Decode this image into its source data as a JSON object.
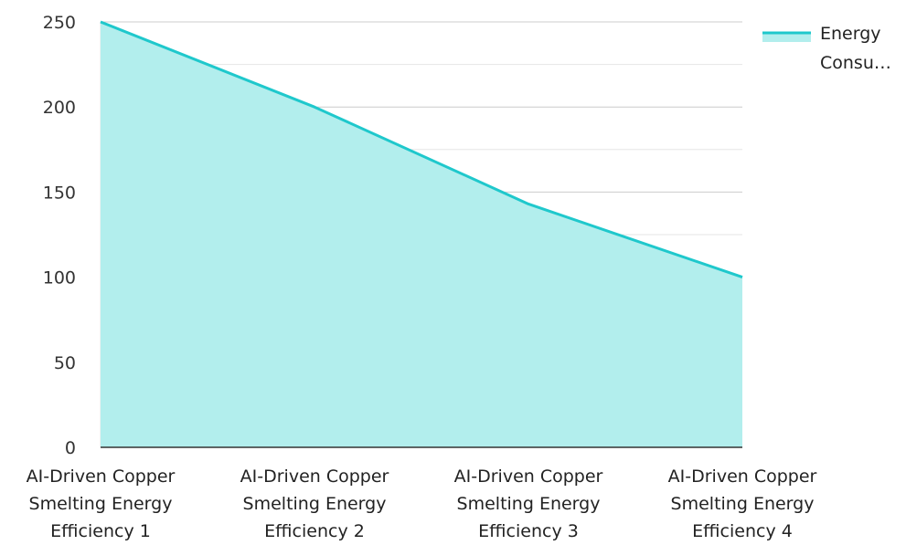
{
  "chart_data": {
    "type": "area",
    "categories": [
      [
        "AI-Driven Copper",
        "Smelting Energy",
        "Efficiency 1"
      ],
      [
        "AI-Driven Copper",
        "Smelting Energy",
        "Efficiency 2"
      ],
      [
        "AI-Driven Copper",
        "Smelting Energy",
        "Efficiency 3"
      ],
      [
        "AI-Driven Copper",
        "Smelting Energy",
        "Efficiency 4"
      ]
    ],
    "series": [
      {
        "name": "Energy Consu…",
        "legend_lines": [
          "Energy",
          "Consu…"
        ],
        "values": [
          250,
          200,
          143,
          100
        ]
      }
    ],
    "yticks": [
      "0",
      "50",
      "100",
      "150",
      "200",
      "250"
    ],
    "ylim": [
      0,
      250
    ],
    "grid": true,
    "legend_position": "top-right",
    "colors": {
      "line": "#1fc8cc",
      "fill": "#b2eeed",
      "grid": "#dddddd",
      "axis": "#333333"
    }
  }
}
